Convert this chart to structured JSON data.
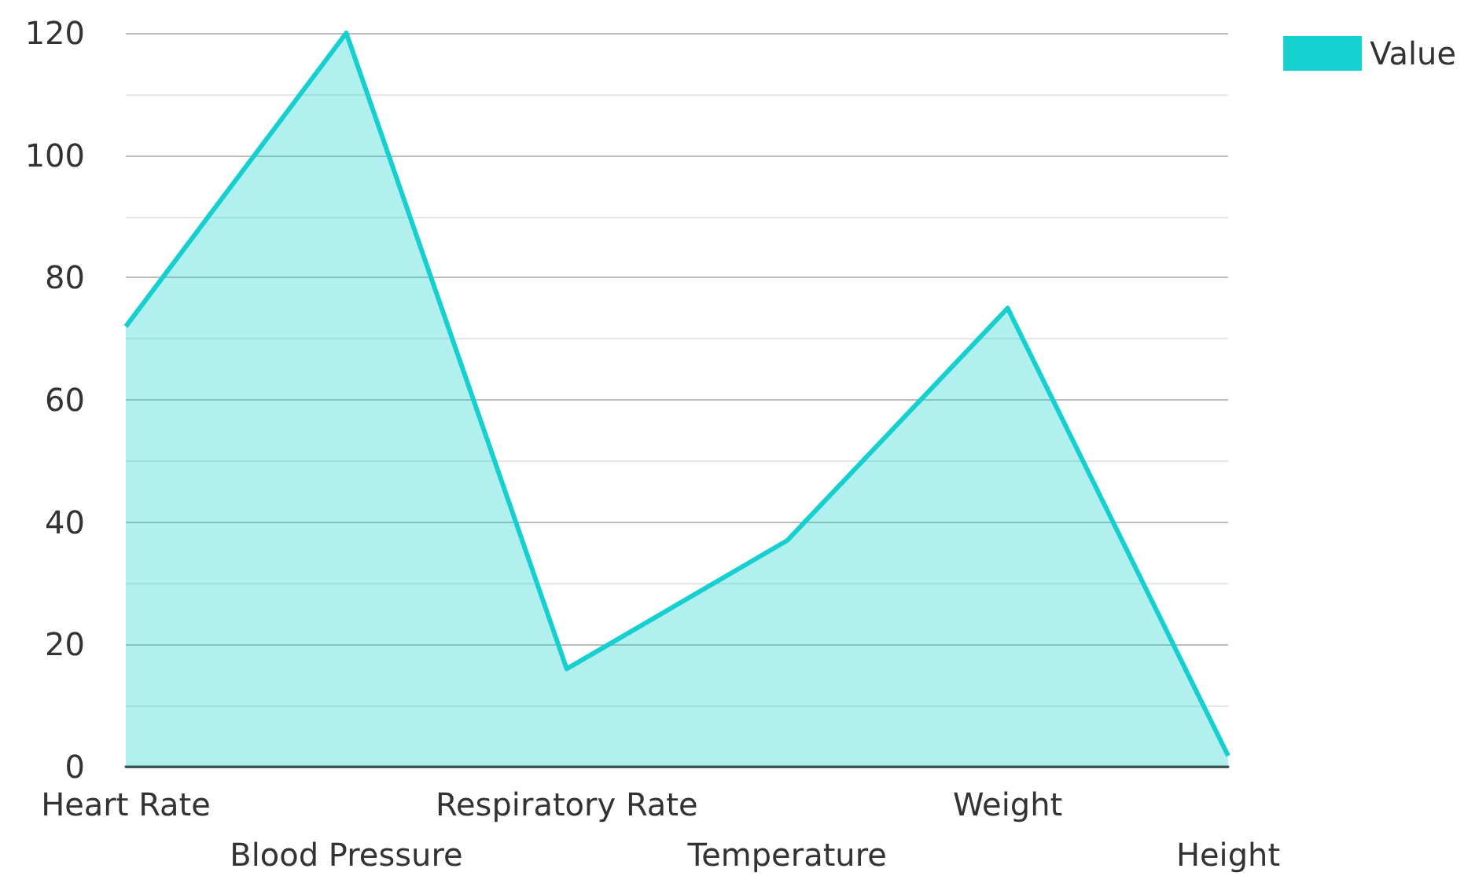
{
  "chart_data": {
    "type": "area",
    "categories": [
      "Heart Rate",
      "Blood Pressure",
      "Respiratory Rate",
      "Temperature",
      "Weight",
      "Height"
    ],
    "series": [
      {
        "name": "Value",
        "color": "#16cfcf",
        "values": [
          72,
          120,
          16,
          37,
          75,
          1.8
        ]
      }
    ],
    "ylim": [
      0,
      120
    ],
    "yticks": [
      0,
      20,
      40,
      60,
      80,
      100,
      120
    ],
    "grid": "y",
    "legend": "top right",
    "marker": "none"
  }
}
